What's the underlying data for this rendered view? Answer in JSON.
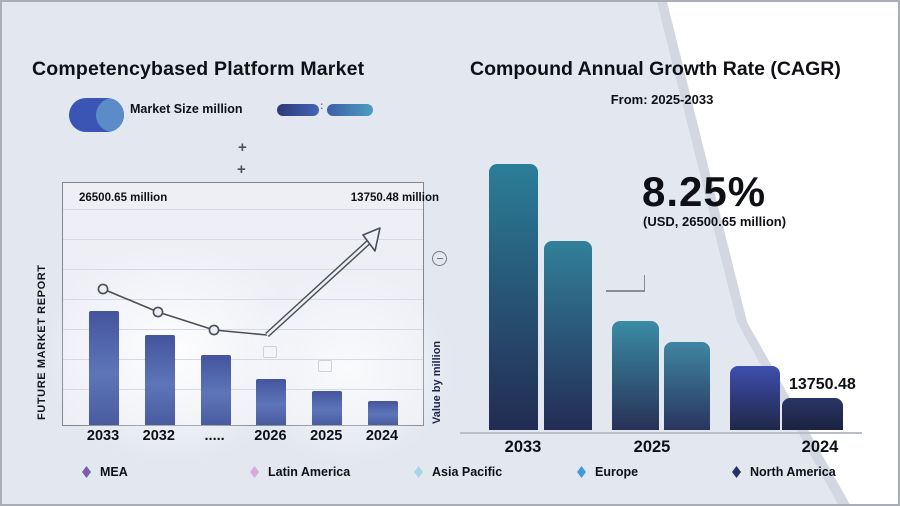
{
  "colors": {
    "background": "#e3e7f0",
    "panel_bg": "#edeff5",
    "text": "#0e1016",
    "navy": "#232b52",
    "teal": "#2b7e98",
    "indigo": "#3e4fae"
  },
  "left_section": {
    "title": "Competencybased Platform Market",
    "legend_label": "Market Size million",
    "pill_separator": ":",
    "plus_mark": "+",
    "side_label": "FUTURE MARKET REPORT",
    "axis_label": "Value by million",
    "annotation_left": "26500.65 million",
    "annotation_right": "13750.48 million"
  },
  "right_section": {
    "title": "Compound Annual Growth Rate (CAGR)",
    "subtitle": "From: 2025-2033",
    "cagr_value": "8.25%",
    "cagr_note": "(USD, 26500.65 million)",
    "value_label": "13750.48"
  },
  "legend": {
    "items": [
      {
        "label": "MEA",
        "color": "#7b5fae"
      },
      {
        "label": "Latin America",
        "color": "#d9abdc"
      },
      {
        "label": "Asia Pacific",
        "color": "#a9d6e5"
      },
      {
        "label": "Europe",
        "color": "#3f9ddc"
      },
      {
        "label": "North America",
        "color": "#27335f"
      }
    ]
  },
  "chart_data": [
    {
      "type": "bar",
      "title": "Competencybased Platform Market",
      "legend": "Market Size million",
      "ylabel": "Value by million",
      "categories": [
        "2033",
        "2032",
        ".....",
        "2026",
        "2025",
        "2024"
      ],
      "values": [
        47,
        37,
        29,
        19,
        14,
        10
      ],
      "unit": "relative bar height, % of plot area (numeric values not labeled in image)",
      "annotations": [
        "26500.65 million",
        "13750.48 million"
      ],
      "trend": "marker line declines from 2033 to 2026, then outlined arrow rises to upper right",
      "grid": true,
      "bar_gradient": [
        "#44549e",
        "#5d76b8",
        "#4a5ba0"
      ]
    },
    {
      "type": "bar",
      "title": "Compound Annual Growth Rate (CAGR)",
      "subtitle": "From: 2025-2033",
      "cagr": "8.25%",
      "basis": "(USD, 26500.65 million)",
      "categories": [
        "2033",
        "2025",
        "2024"
      ],
      "series": [
        {
          "name": "primary",
          "values": [
            100,
            41,
            24
          ]
        },
        {
          "name": "secondary",
          "values": [
            71,
            33,
            12
          ]
        }
      ],
      "unit": "relative bar height, % of tallest bar",
      "data_label": {
        "category": "2024",
        "text": "13750.48"
      },
      "gradients": [
        [
          [
            "#2b7e98",
            "#232b52"
          ],
          [
            "#31809a",
            "#242c55"
          ]
        ],
        [
          [
            "#3a8ca6",
            "#283156"
          ],
          [
            "#3f86a2",
            "#2a3560"
          ]
        ],
        [
          [
            "#3e4fae",
            "#1f2748"
          ],
          [
            "#2b3566",
            "#1b2240"
          ]
        ]
      ]
    }
  ]
}
